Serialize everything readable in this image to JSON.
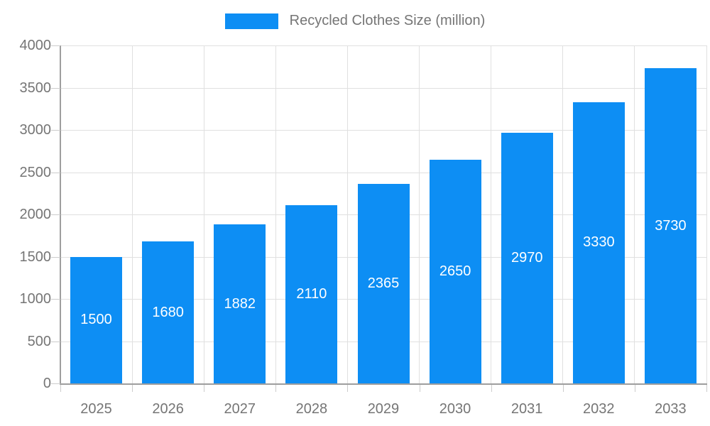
{
  "legend": {
    "label": "Recycled Clothes Size (million)"
  },
  "chart_data": {
    "type": "bar",
    "title": "Recycled Clothes Size (million)",
    "categories": [
      "2025",
      "2026",
      "2027",
      "2028",
      "2029",
      "2030",
      "2031",
      "2032",
      "2033"
    ],
    "series": [
      {
        "name": "Recycled Clothes Size (million)",
        "values": [
          1500,
          1680,
          1882,
          2110,
          2365,
          2650,
          2970,
          3330,
          3730
        ]
      }
    ],
    "xlabel": "",
    "ylabel": "",
    "ylim": [
      0,
      4000
    ],
    "ytick_step": 500,
    "grid": true,
    "legend_position": "top-center",
    "bar_labels_inside": true,
    "colors": {
      "bar": "#0d8ef4",
      "bar_label_text": "#ffffff",
      "axis_text": "#757575",
      "gridline": "#e0e0e0",
      "tick": "#cccccc",
      "axis_line": "#9e9e9e",
      "background": "#ffffff"
    }
  }
}
